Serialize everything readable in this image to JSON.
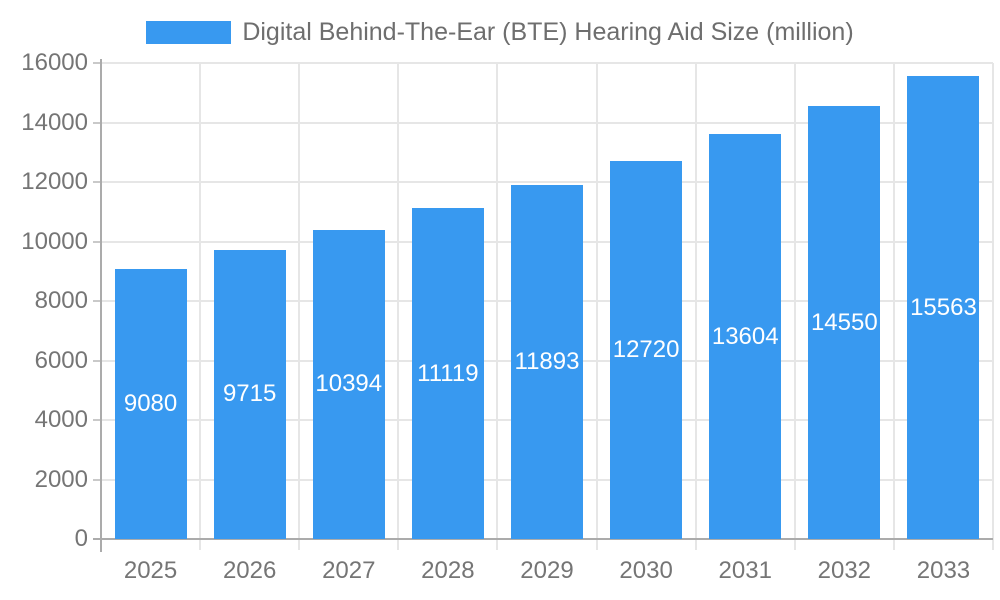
{
  "legend": {
    "label": "Digital Behind-The-Ear (BTE) Hearing Aid Size (million)"
  },
  "chart_data": {
    "type": "bar",
    "title": "Digital Behind-The-Ear (BTE) Hearing Aid Size (million)",
    "categories": [
      "2025",
      "2026",
      "2027",
      "2028",
      "2029",
      "2030",
      "2031",
      "2032",
      "2033"
    ],
    "values": [
      9080,
      9715,
      10394,
      11119,
      11893,
      12720,
      13604,
      14550,
      15563
    ],
    "xlabel": "",
    "ylabel": "",
    "ylim": [
      0,
      16000
    ],
    "ytick_step": 2000,
    "ytick_labels": [
      "0",
      "2000",
      "4000",
      "6000",
      "8000",
      "10000",
      "12000",
      "14000",
      "16000"
    ],
    "grid": true,
    "legend_position": "top-center",
    "value_labels": "inside-center-white",
    "colors": {
      "bar": "#3899F0",
      "value_label": "#FFFFFF",
      "axis_label": "#757575",
      "legend_label": "#6E6E6E",
      "gridline": "#E6E6E6",
      "axis_line": "#ABABAB"
    }
  }
}
